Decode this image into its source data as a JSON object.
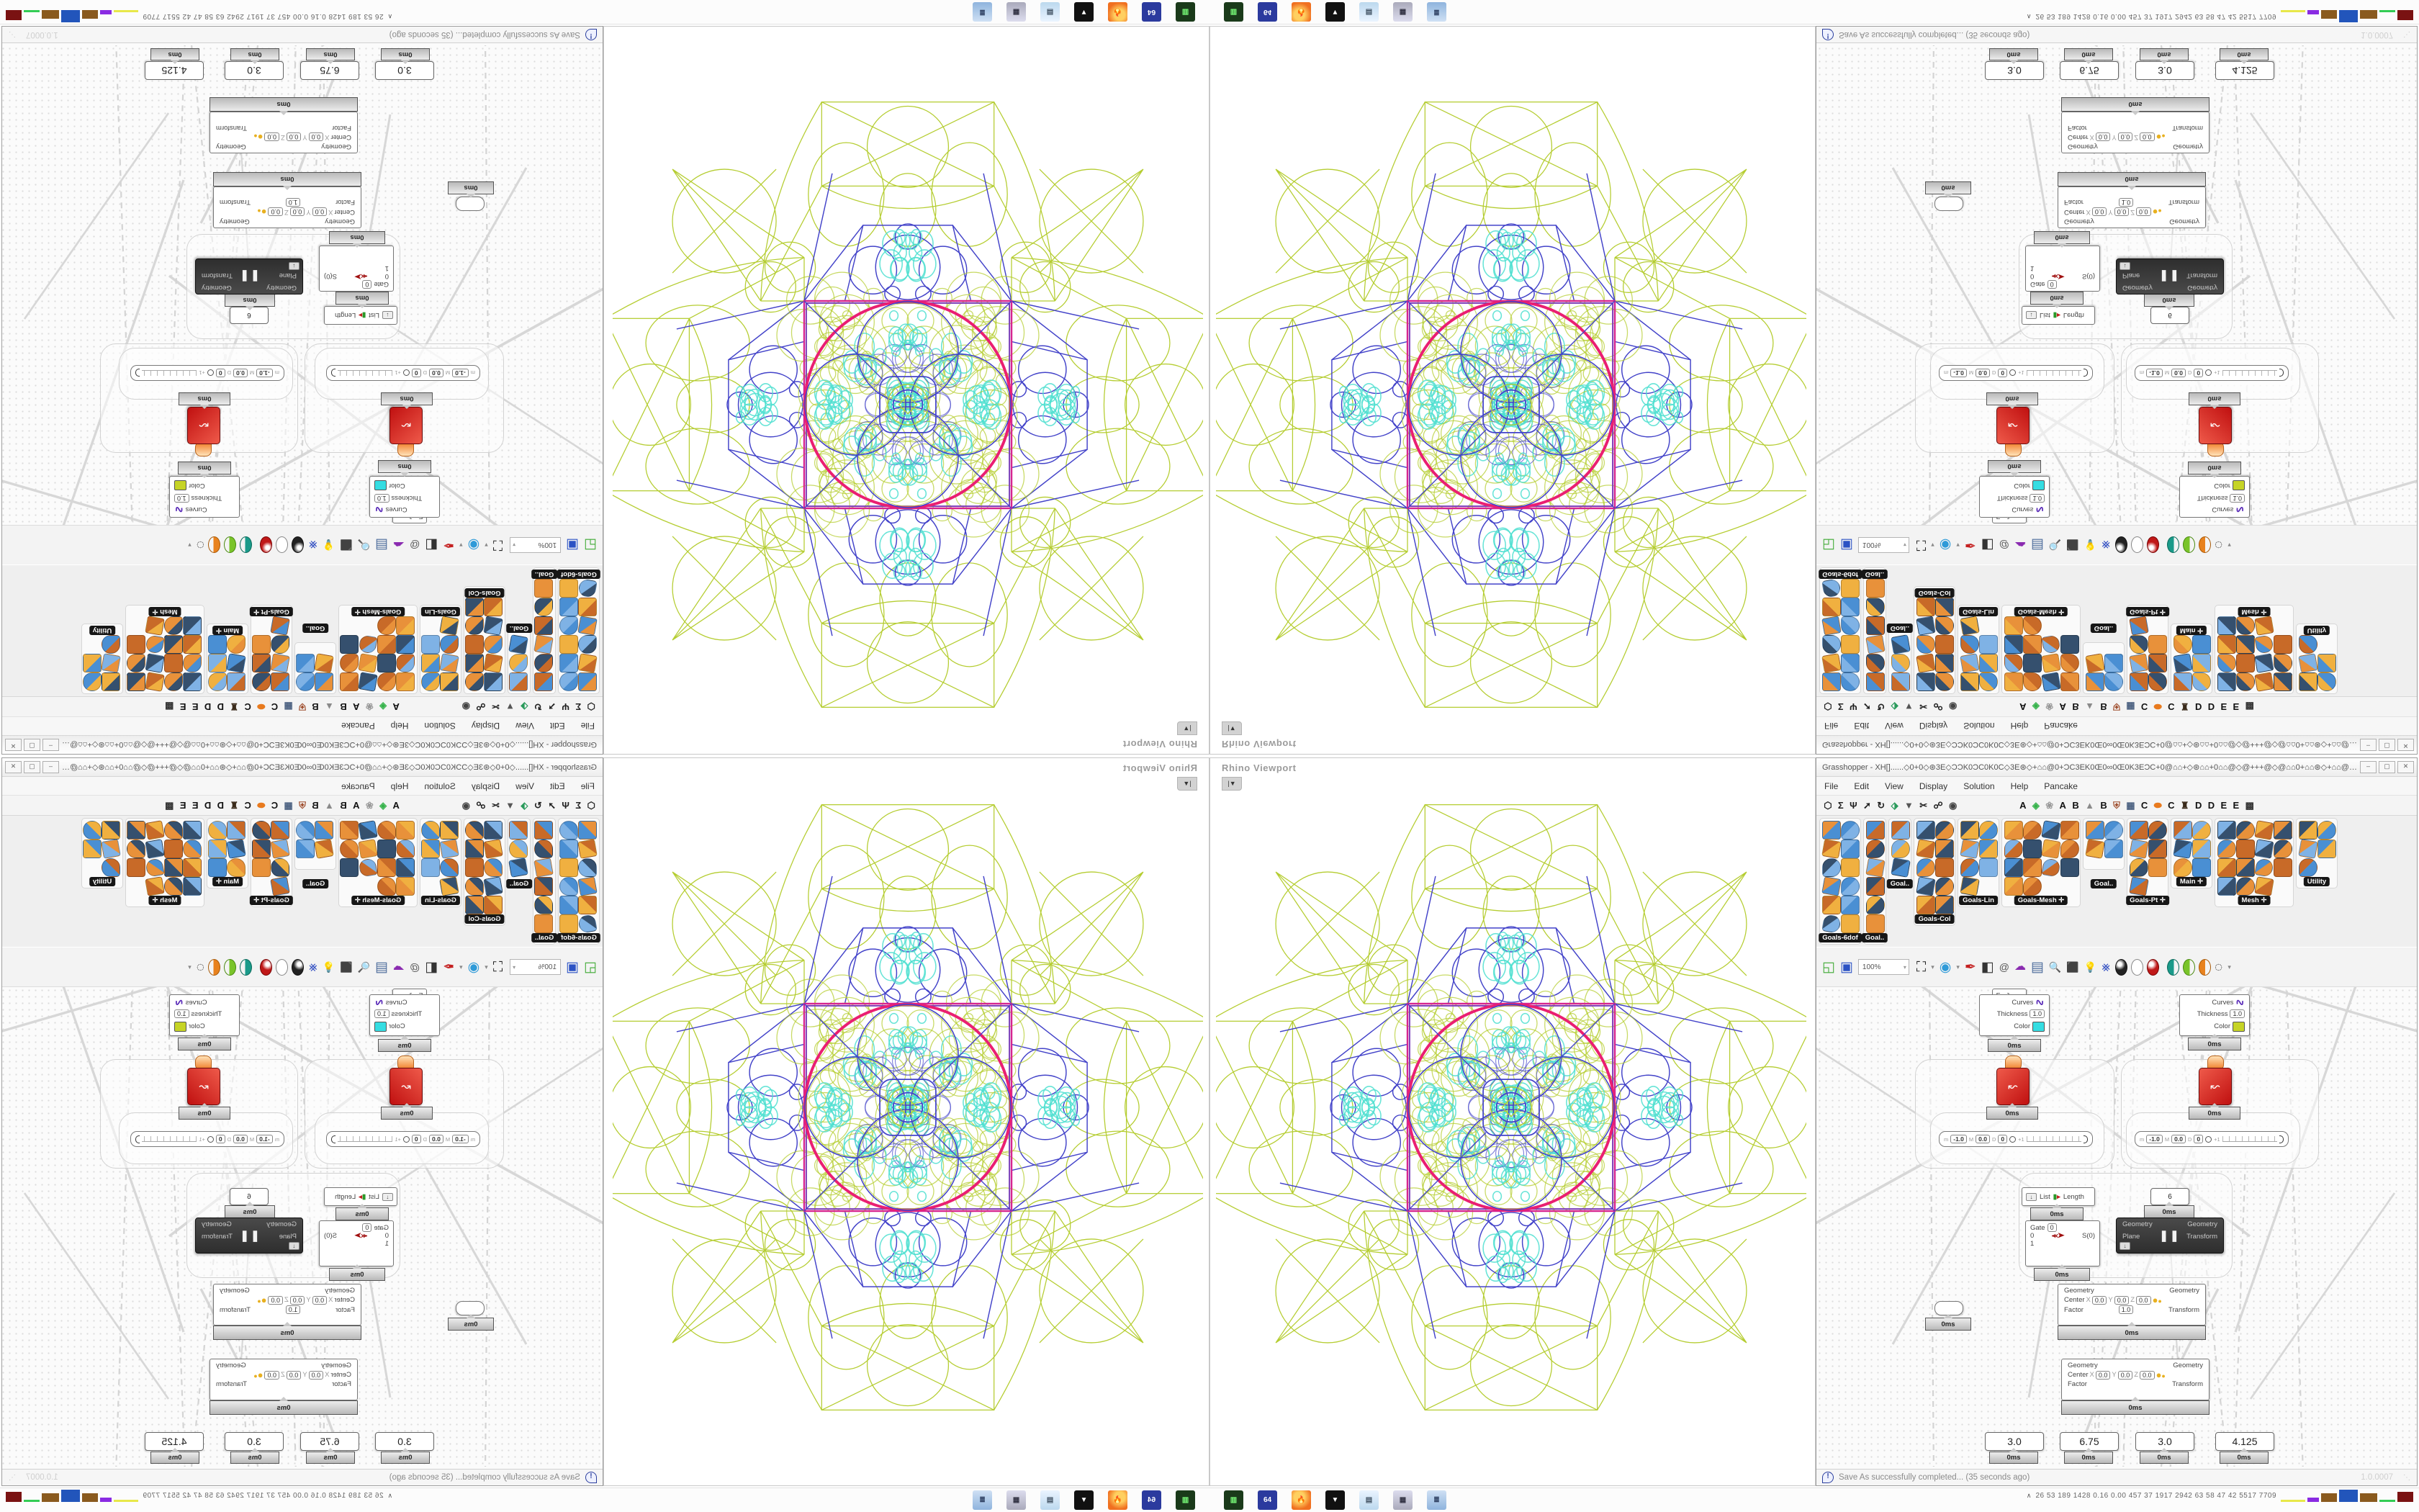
{
  "window": {
    "title": "Grasshopper - XH[]......◇0+0◇⊛3E◇ƆƆK0ƆC0K0C◇3E⊛◇+⌂⌂@0+ƆC3EK0Œ0∞0Œ0K3EƆC+0@⌂⌂+◇⊛⌂⌂+0⌂⌂@◇@+++@◇@⌂⌂0+⌂⌂⊛◇+⌂⌂@0+ƆC3EK0Œ0∞0...",
    "buttons": {
      "minimize": "–",
      "maximize": "▢",
      "close": "✕"
    }
  },
  "menu": {
    "items": [
      "File",
      "Edit",
      "View",
      "Display",
      "Solution",
      "Help",
      "Pancake"
    ]
  },
  "tabs": {
    "items": [
      {
        "name": "params",
        "glyph": "⬡",
        "color": "#222"
      },
      {
        "name": "maths",
        "glyph": "Σ",
        "color": "#222"
      },
      {
        "name": "sets",
        "glyph": "Ψ",
        "color": "#222"
      },
      {
        "name": "vector",
        "glyph": "➚",
        "color": "#222"
      },
      {
        "name": "curve",
        "glyph": "↻",
        "color": "#222"
      },
      {
        "name": "surface",
        "glyph": "⬗",
        "color": "#2a9a5b"
      },
      {
        "name": "mesh",
        "glyph": "▼",
        "color": "#555"
      },
      {
        "name": "intersect",
        "glyph": "✂",
        "color": "#222"
      },
      {
        "name": "transform",
        "glyph": "☍",
        "color": "#222"
      },
      {
        "name": "display",
        "glyph": "◉",
        "color": "#444"
      },
      {
        "name": "spacer",
        "glyph": "",
        "color": ""
      },
      {
        "name": "plugin-a1",
        "glyph": "A",
        "color": "#111"
      },
      {
        "name": "plugin-leaf",
        "glyph": "◈",
        "color": "#35b24a"
      },
      {
        "name": "plugin-kangaroo",
        "glyph": "❀",
        "color": "#999"
      },
      {
        "name": "plugin-a2",
        "glyph": "A",
        "color": "#111"
      },
      {
        "name": "plugin-b1",
        "glyph": "B",
        "color": "#111"
      },
      {
        "name": "plugin-mountain",
        "glyph": "▲",
        "color": "#8a8a8a"
      },
      {
        "name": "plugin-b2",
        "glyph": "B",
        "color": "#111"
      },
      {
        "name": "plugin-shield",
        "glyph": "⛨",
        "color": "#a05030"
      },
      {
        "name": "plugin-grid",
        "glyph": "▦",
        "color": "#4a6080"
      },
      {
        "name": "plugin-c1",
        "glyph": "C",
        "color": "#111"
      },
      {
        "name": "plugin-pill",
        "glyph": "⬬",
        "color": "#e87a1e"
      },
      {
        "name": "plugin-c2",
        "glyph": "C",
        "color": "#111"
      },
      {
        "name": "plugin-bird",
        "glyph": "♜",
        "color": "#3a2a1a"
      },
      {
        "name": "plugin-d1",
        "glyph": "D",
        "color": "#111"
      },
      {
        "name": "plugin-d2",
        "glyph": "D",
        "color": "#111"
      },
      {
        "name": "plugin-e1",
        "glyph": "E",
        "color": "#111"
      },
      {
        "name": "plugin-e2",
        "glyph": "E",
        "color": "#111"
      },
      {
        "name": "plugin-checker",
        "glyph": "▩",
        "color": "#333"
      }
    ]
  },
  "palette": {
    "groups": [
      {
        "label": "Goals-6dof",
        "cols": 2,
        "icons": 12
      },
      {
        "label": "Goal..",
        "cols": 1,
        "icons": 6
      },
      {
        "label": "Goal..",
        "cols": 1,
        "icons": 3,
        "short": true
      },
      {
        "label": "Goals-Col",
        "cols": 2,
        "icons": 10
      },
      {
        "label": "Goals-Lin",
        "cols": 2,
        "icons": 7
      },
      {
        "label": "Goals-Mesh ✛",
        "cols": 4,
        "icons": 14
      },
      {
        "label": "Goal..",
        "cols": 2,
        "icons": 4,
        "short": true
      },
      {
        "label": "Goals-Pt ✛",
        "cols": 2,
        "icons": 7
      },
      {
        "label": "Main ✛",
        "cols": 2,
        "icons": 6
      },
      {
        "label": "Mesh ✛",
        "cols": 4,
        "icons": 15
      },
      {
        "label": "Utility",
        "cols": 2,
        "icons": 5
      }
    ],
    "icon_colors": [
      "#e8913a",
      "#4a8fd3",
      "#c86a28",
      "#7fb2e5",
      "#35506e",
      "#f0b040"
    ]
  },
  "toolbar": {
    "zoom_value": "100%"
  },
  "canvas": {
    "toggle_label": "False",
    "preview1": {
      "in1": "Curves",
      "in2": "Thickness",
      "thickness": "1.0",
      "in3": "Color",
      "swatch": "#35dde2",
      "time": "0ms"
    },
    "preview2": {
      "in1": "Curves",
      "in2": "Thickness",
      "thickness": "1.0",
      "in3": "Color",
      "swatch": "#c6d426",
      "time": "0ms"
    },
    "red1_time": "0ms",
    "red2_time": "0ms",
    "slider1": {
      "l1": "m",
      "v1": "-1.0",
      "l2": "M",
      "v2": "0.0",
      "l3": "D",
      "v3": "0",
      "end": "+1"
    },
    "slider2": {
      "l1": "m",
      "v1": "-1.0",
      "l2": "M",
      "v2": "0.0",
      "l3": "D",
      "v3": "0",
      "end": "+1"
    },
    "list_length": {
      "in": "List",
      "out": "Length",
      "time": "0ms"
    },
    "panel6": {
      "value": "6",
      "time": "0ms"
    },
    "gate": {
      "l1": "Gate",
      "g": "0",
      "in0": "0",
      "in1": "1",
      "out": "S(0)",
      "time": "0ms"
    },
    "orient": {
      "in1": "Geometry",
      "in2": "Plane",
      "out1": "Geometry",
      "out2": "Transform"
    },
    "relay_time": "0ms",
    "scale1": {
      "r1l": "Geometry",
      "r1r": "Geometry",
      "c": "Center",
      "x": "X",
      "xv": "0.0",
      "y": "Y",
      "yv": "0.0",
      "z": "Z",
      "zv": "0.0",
      "f": "Factor",
      "fv": "1.0",
      "tr": "Transform",
      "time": "0ms"
    },
    "scale2": {
      "r1l": "Geometry",
      "r1r": "Geometry",
      "c": "Center",
      "x": "X",
      "xv": "0.0",
      "y": "Y",
      "yv": "0.0",
      "z": "Z",
      "zv": "0.0",
      "f": "Factor",
      "tr": "Transform",
      "time": "0ms"
    },
    "panels": [
      {
        "value": "3.0",
        "time": "0ms"
      },
      {
        "value": "6.75",
        "time": "0ms"
      },
      {
        "value": "3.0",
        "time": "0ms"
      },
      {
        "value": "4.125",
        "time": "0ms"
      }
    ]
  },
  "status": {
    "message": "Save As successfully completed... (35 seconds ago)",
    "version": "1.0.0007"
  },
  "viewport": {
    "label": "Rhino Viewport",
    "pin_glyph": "|▼"
  },
  "taskbar": {
    "icons": [
      "drive-green",
      "floppy-64",
      "firefox",
      "rhino-black",
      "notepad",
      "calculator",
      "script-blue"
    ],
    "floppy_text": "64",
    "tray_chevron": "∧",
    "tray_values": "26   53   189 1428 0.16 0.00 457   37   1917 2942 63   58   47   42   5517 7709"
  },
  "art": {
    "olive": "#b5cd31",
    "blue": "#4343c9",
    "cyan": "#4ddfd0",
    "magenta": "#ea1f72",
    "square_magenta": "#d6258f",
    "purple": "#7a3cb8",
    "seed": 7
  }
}
